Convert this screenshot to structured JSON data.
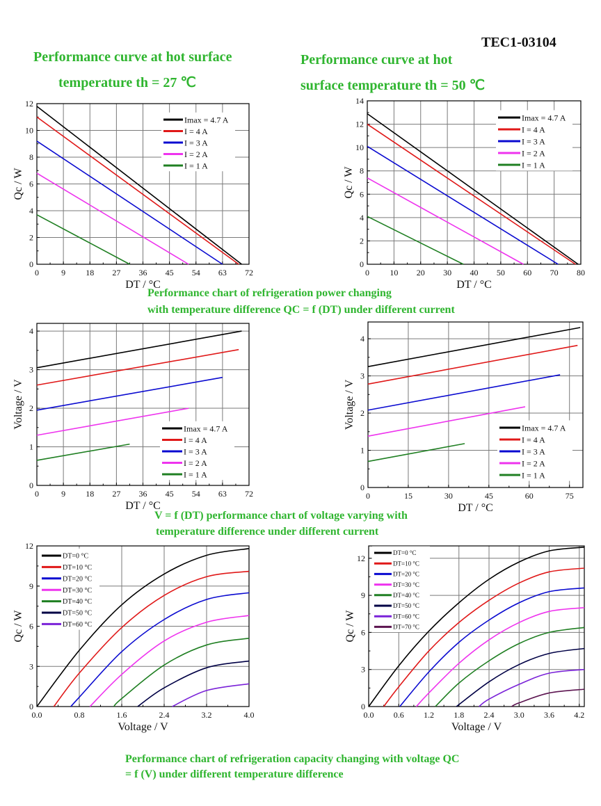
{
  "header": {
    "model": "TEC1-03104",
    "title_left_line1": "Performance curve at hot surface",
    "title_left_line2": "temperature th = 27 ℃",
    "title_right_line1": "Performance curve at hot",
    "title_right_line2": "surface temperature th = 50 ℃"
  },
  "captions": {
    "qc_dt_line1": "Performance chart of refrigeration power changing",
    "qc_dt_line2": "with temperature difference QC = f (DT) under different current",
    "v_dt_line1": "V = f (DT) performance chart of voltage varying with",
    "v_dt_line2": "temperature difference under different current",
    "qc_v_line1": "Performance chart of refrigeration capacity changing with voltage QC",
    "qc_v_line2": "= f (V) under different temperature difference"
  },
  "colors": {
    "black": "#000000",
    "red": "#e01818",
    "blue": "#0a0ad0",
    "magenta": "#ee33ee",
    "green": "#1f7f22",
    "navy": "#000045",
    "purple": "#7a22d8",
    "plum": "#5c1450",
    "grid": "#7a7a7a",
    "caption": "#2fb52f"
  },
  "chart_data": [
    {
      "id": "qc-dt-27",
      "type": "line",
      "xlabel": "DT / °C",
      "ylabel": "Qc / W",
      "xlim": [
        0,
        72
      ],
      "ylim": [
        0,
        12
      ],
      "xticks": [
        "0",
        "9",
        "18",
        "27",
        "36",
        "45",
        "54",
        "63",
        "72"
      ],
      "xtick_values": [
        0,
        9,
        18,
        27,
        36,
        45,
        54,
        63,
        72
      ],
      "yticks": [
        "0",
        "2",
        "4",
        "6",
        "8",
        "10",
        "12"
      ],
      "ytick_values": [
        0,
        2,
        4,
        6,
        8,
        10,
        12
      ],
      "grid": true,
      "legend": "top-right",
      "series": [
        {
          "name": "Imax = 4.7 A",
          "color": "black",
          "points": [
            [
              0,
              11.8
            ],
            [
              69.5,
              0
            ]
          ]
        },
        {
          "name": "I = 4 A",
          "color": "red",
          "points": [
            [
              0,
              11.0
            ],
            [
              68.5,
              0
            ]
          ]
        },
        {
          "name": "I = 3 A",
          "color": "blue",
          "points": [
            [
              0,
              9.2
            ],
            [
              63,
              0
            ]
          ]
        },
        {
          "name": "I = 2 A",
          "color": "magenta",
          "points": [
            [
              0,
              6.8
            ],
            [
              51.5,
              0
            ]
          ]
        },
        {
          "name": "I = 1 A",
          "color": "green",
          "points": [
            [
              0,
              3.7
            ],
            [
              31.5,
              0
            ]
          ]
        }
      ]
    },
    {
      "id": "qc-dt-50",
      "type": "line",
      "xlabel": "DT / °C",
      "ylabel": "Qc / W",
      "xlim": [
        0,
        80
      ],
      "ylim": [
        0,
        14
      ],
      "xticks": [
        "0",
        "10",
        "20",
        "30",
        "40",
        "50",
        "60",
        "70",
        "80"
      ],
      "xtick_values": [
        0,
        10,
        20,
        30,
        40,
        50,
        60,
        70,
        80
      ],
      "yticks": [
        "0",
        "2",
        "4",
        "6",
        "8",
        "10",
        "12",
        "14"
      ],
      "ytick_values": [
        0,
        2,
        4,
        6,
        8,
        10,
        12,
        14
      ],
      "grid": true,
      "legend": "top-right",
      "series": [
        {
          "name": "Imax = 4.7 A",
          "color": "black",
          "points": [
            [
              0,
              12.9
            ],
            [
              79,
              0
            ]
          ]
        },
        {
          "name": "I = 4 A",
          "color": "red",
          "points": [
            [
              0,
              12.0
            ],
            [
              78,
              0
            ]
          ]
        },
        {
          "name": "I = 3 A",
          "color": "blue",
          "points": [
            [
              0,
              10.1
            ],
            [
              71.5,
              0
            ]
          ]
        },
        {
          "name": "I = 2 A",
          "color": "magenta",
          "points": [
            [
              0,
              7.4
            ],
            [
              58.5,
              0
            ]
          ]
        },
        {
          "name": "I = 1 A",
          "color": "green",
          "points": [
            [
              0,
              4.1
            ],
            [
              36,
              0
            ]
          ]
        }
      ]
    },
    {
      "id": "v-dt-27",
      "type": "line",
      "xlabel": "DT / °C",
      "ylabel": "Voltage / V",
      "xlim": [
        0,
        72
      ],
      "ylim": [
        0,
        4.2
      ],
      "xticks": [
        "0",
        "9",
        "18",
        "27",
        "36",
        "45",
        "54",
        "63",
        "72"
      ],
      "xtick_values": [
        0,
        9,
        18,
        27,
        36,
        45,
        54,
        63,
        72
      ],
      "yticks": [
        "0",
        "1",
        "2",
        "3",
        "4"
      ],
      "ytick_values": [
        0,
        1,
        2,
        3,
        4
      ],
      "grid": true,
      "legend": "bottom-right",
      "series": [
        {
          "name": "Imax = 4.7 A",
          "color": "black",
          "points": [
            [
              0,
              3.05
            ],
            [
              69.5,
              4.0
            ]
          ]
        },
        {
          "name": "I = 4 A",
          "color": "red",
          "points": [
            [
              0,
              2.6
            ],
            [
              68.5,
              3.52
            ]
          ]
        },
        {
          "name": "I = 3 A",
          "color": "blue",
          "points": [
            [
              0,
              1.95
            ],
            [
              63,
              2.8
            ]
          ]
        },
        {
          "name": "I = 2 A",
          "color": "magenta",
          "points": [
            [
              0,
              1.3
            ],
            [
              51.5,
              2.0
            ]
          ]
        },
        {
          "name": "I = 1 A",
          "color": "green",
          "points": [
            [
              0,
              0.65
            ],
            [
              31.5,
              1.07
            ]
          ]
        }
      ]
    },
    {
      "id": "v-dt-50",
      "type": "line",
      "xlabel": "DT / °C",
      "ylabel": "Voltage / V",
      "xlim": [
        0,
        80
      ],
      "ylim": [
        0,
        4.45
      ],
      "xticks": [
        "0",
        "15",
        "30",
        "45",
        "60",
        "75"
      ],
      "xtick_values": [
        0,
        15,
        30,
        45,
        60,
        75
      ],
      "yticks": [
        "0",
        "1",
        "2",
        "3",
        "4"
      ],
      "ytick_values": [
        0,
        1,
        2,
        3,
        4
      ],
      "grid": true,
      "legend": "bottom-right",
      "series": [
        {
          "name": "Imax = 4.7 A",
          "color": "black",
          "points": [
            [
              0,
              3.25
            ],
            [
              79,
              4.3
            ]
          ]
        },
        {
          "name": "I = 4 A",
          "color": "red",
          "points": [
            [
              0,
              2.78
            ],
            [
              78,
              3.82
            ]
          ]
        },
        {
          "name": "I = 3 A",
          "color": "blue",
          "points": [
            [
              0,
              2.08
            ],
            [
              71.5,
              3.03
            ]
          ]
        },
        {
          "name": "I = 2 A",
          "color": "magenta",
          "points": [
            [
              0,
              1.38
            ],
            [
              58.5,
              2.17
            ]
          ]
        },
        {
          "name": "I = 1 A",
          "color": "green",
          "points": [
            [
              0,
              0.7
            ],
            [
              36,
              1.18
            ]
          ]
        }
      ]
    },
    {
      "id": "qc-v-27",
      "type": "line",
      "xlabel": "Voltage / V",
      "ylabel": "Qc / W",
      "xlim": [
        0,
        4.0
      ],
      "ylim": [
        0,
        12
      ],
      "xticks": [
        "0.0",
        "0.8",
        "1.6",
        "2.4",
        "3.2",
        "4.0"
      ],
      "xtick_values": [
        0,
        0.8,
        1.6,
        2.4,
        3.2,
        4.0
      ],
      "yticks": [
        "0",
        "3",
        "6",
        "9",
        "12"
      ],
      "ytick_values": [
        0,
        3,
        6,
        9,
        12
      ],
      "grid": true,
      "legend": "top-left",
      "series": [
        {
          "name": "DT=0 °C",
          "color": "black",
          "points": [
            [
              0,
              0
            ],
            [
              0.8,
              4.2
            ],
            [
              1.6,
              7.6
            ],
            [
              2.4,
              9.9
            ],
            [
              3.2,
              11.3
            ],
            [
              4.0,
              11.8
            ]
          ]
        },
        {
          "name": "DT=10 °C",
          "color": "red",
          "points": [
            [
              0.32,
              0
            ],
            [
              0.8,
              2.5
            ],
            [
              1.6,
              5.9
            ],
            [
              2.4,
              8.3
            ],
            [
              3.2,
              9.7
            ],
            [
              4.0,
              10.1
            ]
          ]
        },
        {
          "name": "DT=20 °C",
          "color": "blue",
          "points": [
            [
              0.64,
              0
            ],
            [
              0.8,
              0.7
            ],
            [
              1.6,
              4.1
            ],
            [
              2.4,
              6.5
            ],
            [
              3.2,
              8.0
            ],
            [
              4.0,
              8.5
            ]
          ]
        },
        {
          "name": "DT=30 °C",
          "color": "magenta",
          "points": [
            [
              1.0,
              0
            ],
            [
              1.6,
              2.4
            ],
            [
              2.4,
              4.9
            ],
            [
              3.2,
              6.3
            ],
            [
              4.0,
              6.8
            ]
          ]
        },
        {
          "name": "DT=40 °C",
          "color": "green",
          "points": [
            [
              1.45,
              0
            ],
            [
              1.6,
              0.6
            ],
            [
              2.4,
              3.1
            ],
            [
              3.2,
              4.6
            ],
            [
              4.0,
              5.1
            ]
          ]
        },
        {
          "name": "DT=50 °C",
          "color": "navy",
          "points": [
            [
              1.9,
              0
            ],
            [
              2.4,
              1.4
            ],
            [
              3.2,
              2.9
            ],
            [
              4.0,
              3.4
            ]
          ]
        },
        {
          "name": "DT=60 °C",
          "color": "purple",
          "points": [
            [
              2.55,
              0
            ],
            [
              3.2,
              1.2
            ],
            [
              4.0,
              1.7
            ]
          ]
        }
      ]
    },
    {
      "id": "qc-v-50",
      "type": "line",
      "xlabel": "Voltage / V",
      "ylabel": "Qc / W",
      "xlim": [
        0,
        4.3
      ],
      "ylim": [
        0,
        13
      ],
      "xticks": [
        "0.0",
        "0.6",
        "1.2",
        "1.8",
        "2.4",
        "3.0",
        "3.6",
        "4.2"
      ],
      "xtick_values": [
        0,
        0.6,
        1.2,
        1.8,
        2.4,
        3.0,
        3.6,
        4.2
      ],
      "yticks": [
        "0",
        "3",
        "6",
        "9",
        "12"
      ],
      "ytick_values": [
        0,
        3,
        6,
        9,
        12
      ],
      "grid": true,
      "legend": "top-left",
      "series": [
        {
          "name": "DT=0 °C",
          "color": "black",
          "points": [
            [
              0,
              0
            ],
            [
              0.6,
              3.3
            ],
            [
              1.2,
              6.1
            ],
            [
              1.8,
              8.4
            ],
            [
              2.4,
              10.3
            ],
            [
              3.0,
              11.7
            ],
            [
              3.6,
              12.6
            ],
            [
              4.3,
              12.9
            ]
          ]
        },
        {
          "name": "DT=10 °C",
          "color": "red",
          "points": [
            [
              0.3,
              0
            ],
            [
              0.6,
              1.6
            ],
            [
              1.2,
              4.5
            ],
            [
              1.8,
              6.8
            ],
            [
              2.4,
              8.6
            ],
            [
              3.0,
              10.0
            ],
            [
              3.6,
              10.9
            ],
            [
              4.3,
              11.2
            ]
          ]
        },
        {
          "name": "DT=20 °C",
          "color": "blue",
          "points": [
            [
              0.62,
              0
            ],
            [
              1.2,
              2.8
            ],
            [
              1.8,
              5.2
            ],
            [
              2.4,
              7.0
            ],
            [
              3.0,
              8.4
            ],
            [
              3.6,
              9.3
            ],
            [
              4.3,
              9.6
            ]
          ]
        },
        {
          "name": "DT=30 °C",
          "color": "magenta",
          "points": [
            [
              0.95,
              0
            ],
            [
              1.2,
              1.1
            ],
            [
              1.8,
              3.5
            ],
            [
              2.4,
              5.4
            ],
            [
              3.0,
              6.8
            ],
            [
              3.6,
              7.7
            ],
            [
              4.3,
              8.0
            ]
          ]
        },
        {
          "name": "DT=40 °C",
          "color": "green",
          "points": [
            [
              1.33,
              0
            ],
            [
              1.8,
              1.9
            ],
            [
              2.4,
              3.7
            ],
            [
              3.0,
              5.1
            ],
            [
              3.6,
              6.0
            ],
            [
              4.3,
              6.4
            ]
          ]
        },
        {
          "name": "DT=50 °C",
          "color": "navy",
          "points": [
            [
              1.75,
              0
            ],
            [
              2.4,
              2.0
            ],
            [
              3.0,
              3.4
            ],
            [
              3.6,
              4.3
            ],
            [
              4.3,
              4.7
            ]
          ]
        },
        {
          "name": "DT=60 °C",
          "color": "purple",
          "points": [
            [
              2.2,
              0
            ],
            [
              2.4,
              0.6
            ],
            [
              3.0,
              1.8
            ],
            [
              3.6,
              2.7
            ],
            [
              4.3,
              3.0
            ]
          ]
        },
        {
          "name": "DT=70 °C",
          "color": "plum",
          "points": [
            [
              2.85,
              0
            ],
            [
              3.0,
              0.3
            ],
            [
              3.6,
              1.1
            ],
            [
              4.3,
              1.4
            ]
          ]
        }
      ]
    }
  ]
}
